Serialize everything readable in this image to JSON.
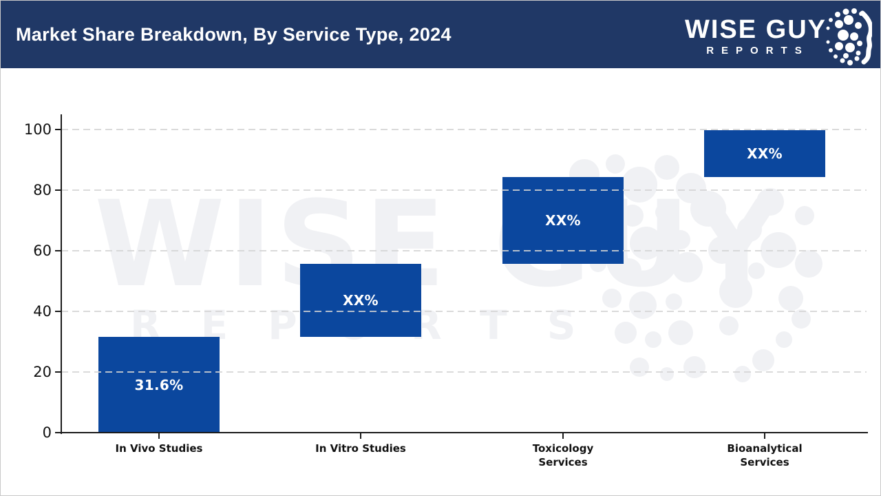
{
  "header": {
    "title": "Market Share Breakdown, By Service Type, 2024",
    "logo": {
      "line1": "WISE GUY",
      "line2": "REPORTS"
    }
  },
  "watermark": {
    "line1": "WISE GUY",
    "line2": "REPORTS"
  },
  "colors": {
    "header_bg": "#203866",
    "bar_fill": "#0b479e",
    "bar_label_text": "#ffffff",
    "grid": "#d4d4d4",
    "axis": "#1a1a1a",
    "watermark": "#f0f1f4"
  },
  "chart_data": {
    "type": "bar",
    "subtype": "waterfall",
    "title": "Market Share Breakdown, By Service Type, 2024",
    "categories": [
      "In Vivo Studies",
      "In Vitro Studies",
      "Toxicology\nServices",
      "Bioanalytical\nServices"
    ],
    "bars": [
      {
        "category": "In Vivo Studies",
        "start": 0,
        "end": 31.6,
        "label": "31.6%"
      },
      {
        "category": "In Vitro Studies",
        "start": 31.6,
        "end": 55.7,
        "label": "XX%"
      },
      {
        "category": "Toxicology Services",
        "start": 55.7,
        "end": 84.3,
        "label": "XX%"
      },
      {
        "category": "Bioanalytical Services",
        "start": 84.3,
        "end": 99.8,
        "label": "XX%"
      }
    ],
    "ylim": [
      0,
      100
    ],
    "yticks": [
      0,
      20,
      40,
      60,
      80,
      100
    ],
    "xlabel": "",
    "ylabel": "",
    "grid": "horizontal-dashed",
    "legend": "none"
  }
}
